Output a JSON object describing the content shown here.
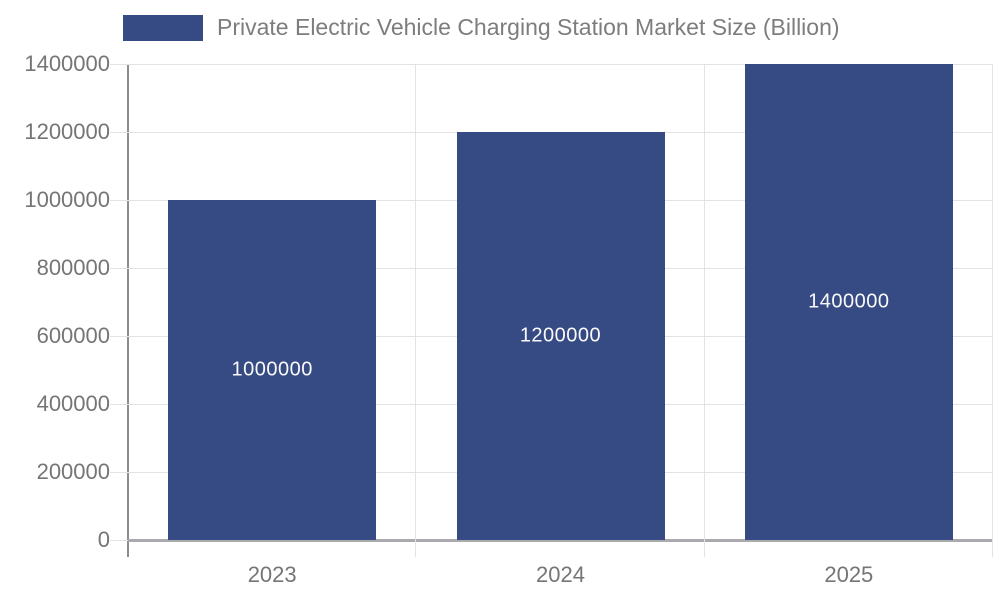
{
  "legend": {
    "label": "Private Electric Vehicle Charging Station Market Size (Billion)"
  },
  "chart_data": {
    "type": "bar",
    "title": "Private Electric Vehicle Charging Station Market Size (Billion)",
    "categories": [
      "2023",
      "2024",
      "2025"
    ],
    "values": [
      1000000,
      1200000,
      1400000
    ],
    "bar_labels": [
      "1000000",
      "1200000",
      "1400000"
    ],
    "xlabel": "",
    "ylabel": "",
    "ylim": [
      0,
      1400000
    ],
    "ytick_step": 200000,
    "yticks": [
      "0",
      "200000",
      "400000",
      "600000",
      "800000",
      "1000000",
      "1200000",
      "1400000"
    ],
    "grid": true,
    "legend_position": "top",
    "colors": {
      "bar": "#364A84",
      "bar_label": "#fafafa",
      "axis_line": "#8c8c8c",
      "baseline": "#a9a9ae",
      "gridline": "#e3e3e3",
      "tick_label": "#757575",
      "legend_text": "#7d7d7d",
      "background": "#ffffff"
    }
  }
}
